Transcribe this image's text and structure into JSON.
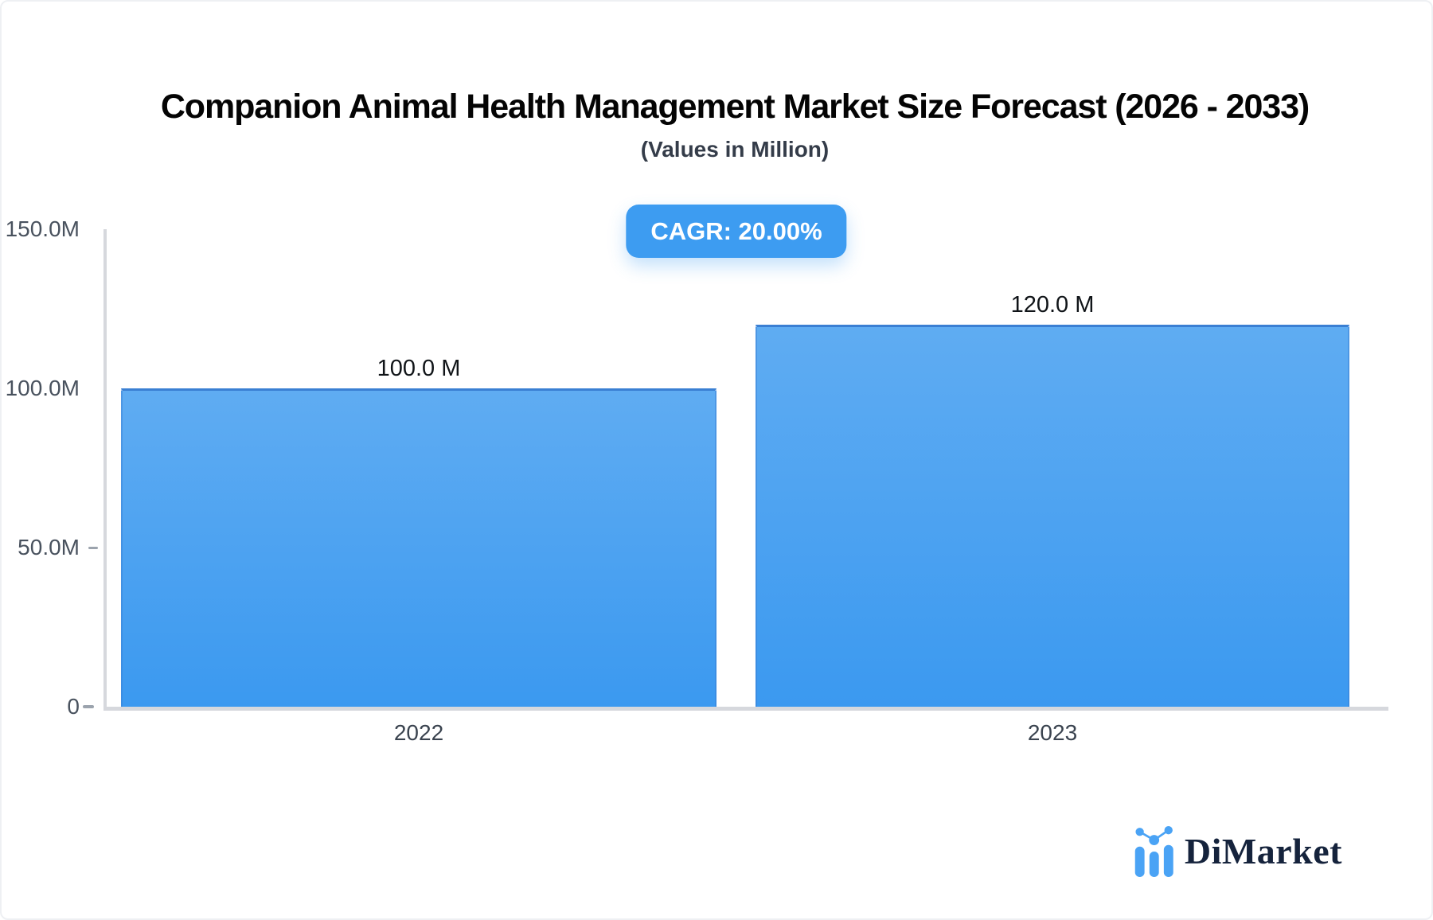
{
  "chart_data": {
    "type": "bar",
    "title": "Companion Animal Health Management Market Size Forecast (2026 - 2033)",
    "subtitle": "(Values in Million)",
    "annotation_badge": "CAGR: 20.00%",
    "categories": [
      "2022",
      "2023"
    ],
    "values": [
      100.0,
      120.0
    ],
    "value_labels": [
      "100.0 M",
      "120.0 M"
    ],
    "ylim": [
      0,
      150
    ],
    "y_ticks": [
      {
        "label": "150.0M",
        "value": 150,
        "dash": false
      },
      {
        "label": "100.0M",
        "value": 100,
        "dash": false
      },
      {
        "label": "50.0M",
        "value": 50,
        "dash": true
      },
      {
        "label": "0",
        "value": 0,
        "dash": true
      }
    ],
    "grid": false,
    "legend": false,
    "colors": {
      "accent": "#3d9cf1",
      "bar_top": "#5facf2",
      "bar_bottom": "#3b99f0",
      "bar_border": "#3a7fd3",
      "axis": "#d6d8dd"
    }
  },
  "footer": {
    "brand": "DiMarket",
    "logo_icon": "bar-line-chart-logo-icon",
    "brand_navy": "#15233c",
    "brand_blue": "#4aa3f5"
  }
}
